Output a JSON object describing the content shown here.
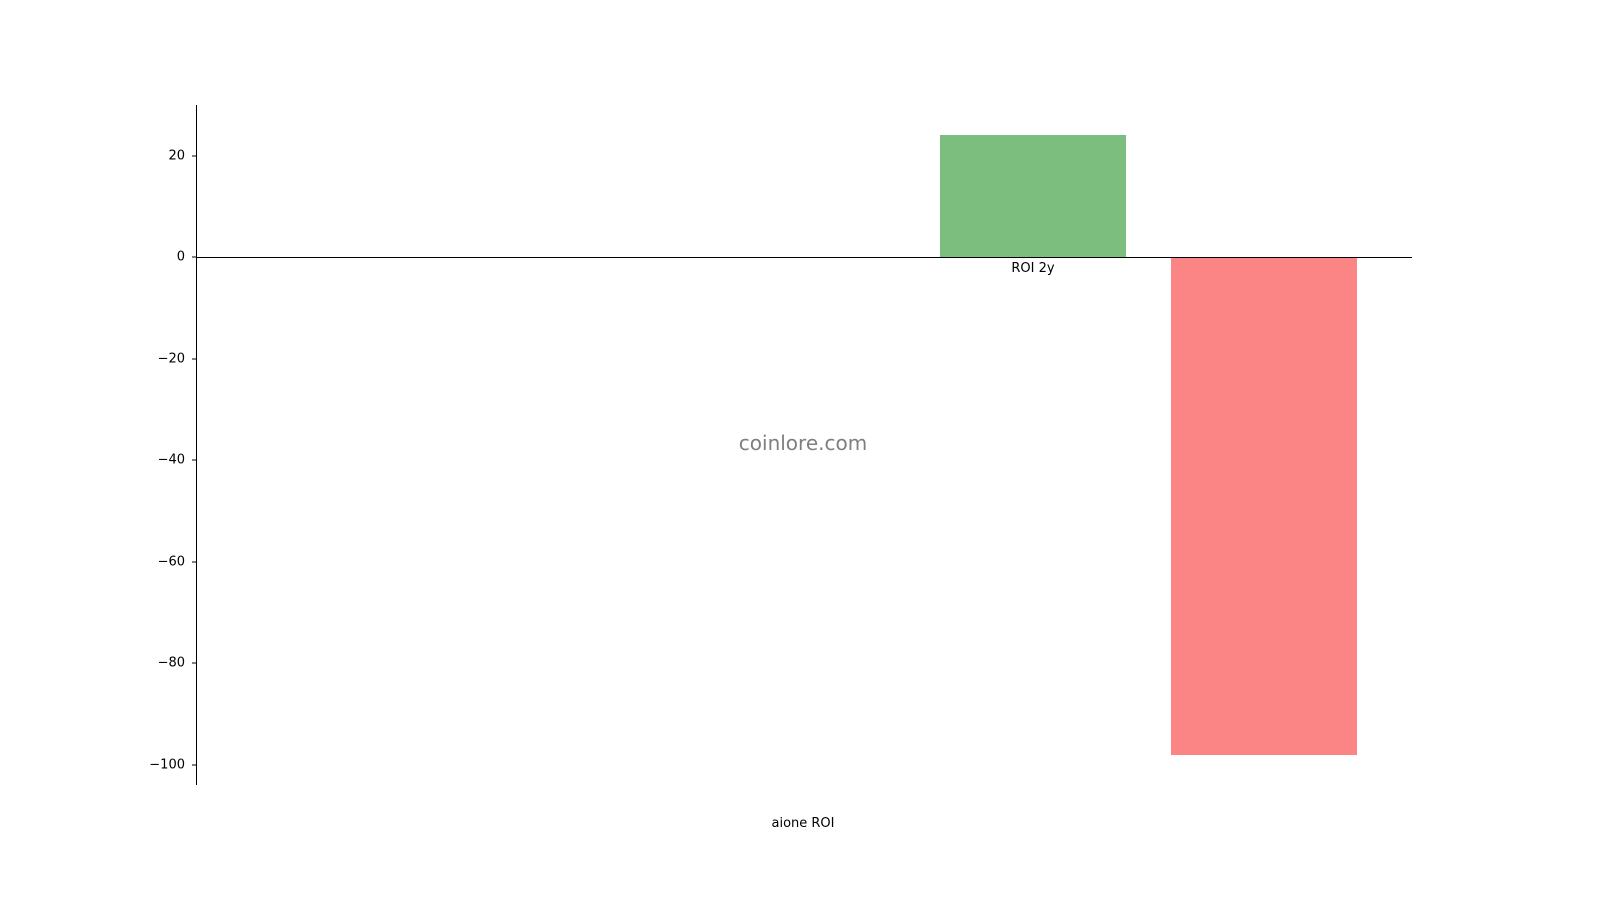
{
  "chart_data": {
    "type": "bar",
    "title": "",
    "xlabel": "aione ROI",
    "ylabel": "",
    "watermark": "coinlore.com",
    "ylim": [
      -104,
      30
    ],
    "yticks": [
      20,
      0,
      -20,
      -40,
      -60,
      -80,
      -100
    ],
    "grid": false,
    "legend": "none",
    "categories": [
      "ROI 2y",
      ""
    ],
    "values": [
      24,
      -98
    ],
    "bar_colors": [
      "#7cbe7e",
      "#fb8585"
    ]
  },
  "colors": {
    "positive_bar": "#7cbe7e",
    "negative_bar": "#fb8585",
    "axis": "#000000",
    "watermark_text": "#7f7f7f",
    "background": "#ffffff"
  }
}
